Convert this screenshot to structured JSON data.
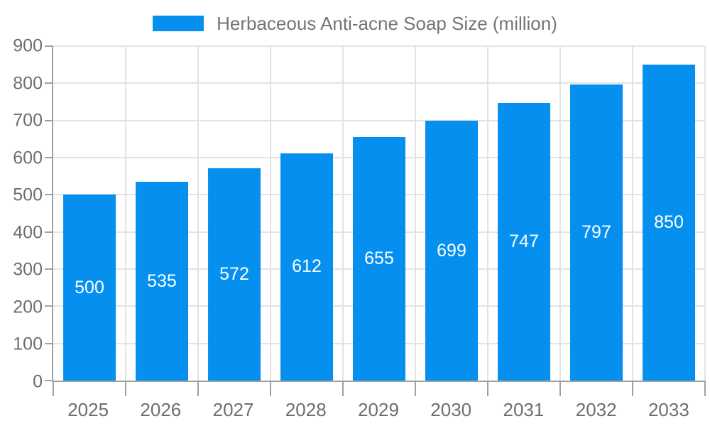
{
  "colors": {
    "bar": "#0590f0",
    "grid_line": "#e3e3e3",
    "axis_line": "#a0a0a0",
    "axis_label": "#6e6e6e",
    "legend_text": "#757575",
    "value_label": "#ffffff",
    "background": "#ffffff"
  },
  "legend": {
    "label": "Herbaceous Anti-acne Soap Size (million)",
    "swatch": "legend-color-swatch"
  },
  "chart_data": {
    "type": "bar",
    "title": "",
    "xlabel": "",
    "ylabel": "",
    "categories": [
      "2025",
      "2026",
      "2027",
      "2028",
      "2029",
      "2030",
      "2031",
      "2032",
      "2033"
    ],
    "series": [
      {
        "name": "Herbaceous Anti-acne Soap Size (million)",
        "values": [
          500,
          535,
          572,
          612,
          655,
          699,
          747,
          797,
          850
        ]
      }
    ],
    "ylim": [
      0,
      900
    ],
    "ytick_interval": 100,
    "ytick_labels": [
      "0",
      "100",
      "200",
      "300",
      "400",
      "500",
      "600",
      "700",
      "800",
      "900"
    ],
    "grid": true,
    "bar_value_labels": [
      "500",
      "535",
      "572",
      "612",
      "655",
      "699",
      "747",
      "797",
      "850"
    ],
    "legend_position": "top-center"
  }
}
